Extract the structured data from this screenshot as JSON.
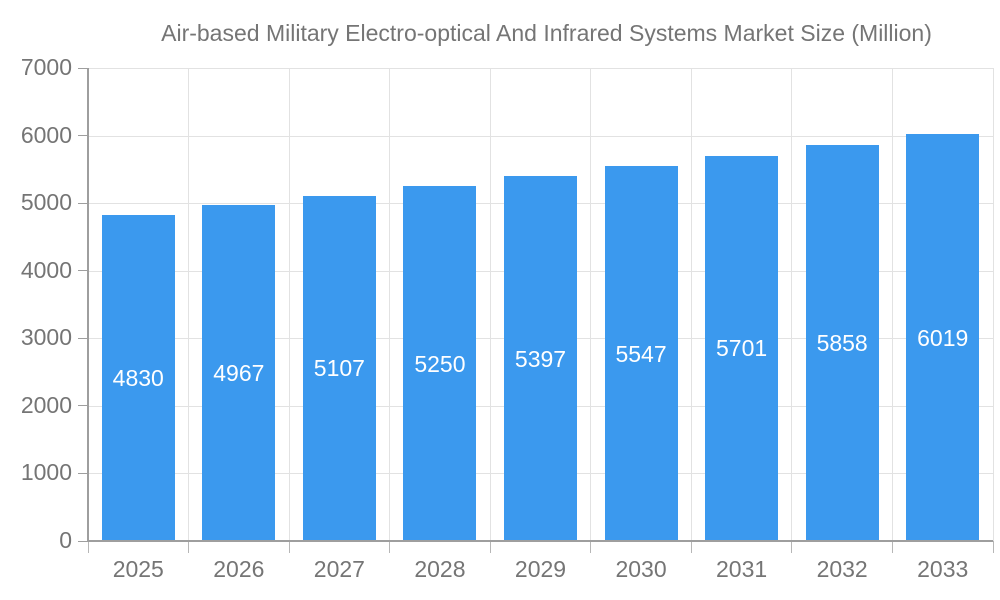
{
  "legend": {
    "label": "Air-based Military Electro-optical And Infrared Systems Market Size (Million)"
  },
  "chart_data": {
    "type": "bar",
    "title": "Air-based Military Electro-optical And Infrared Systems Market Size (Million)",
    "categories": [
      "2025",
      "2026",
      "2027",
      "2028",
      "2029",
      "2030",
      "2031",
      "2032",
      "2033"
    ],
    "values": [
      4830,
      4967,
      5107,
      5250,
      5397,
      5547,
      5701,
      5858,
      6019
    ],
    "xlabel": "",
    "ylabel": "",
    "ylim": [
      0,
      7000
    ],
    "ytick_step": 1000,
    "ytick_labels": [
      "0",
      "1000",
      "2000",
      "3000",
      "4000",
      "5000",
      "6000",
      "7000"
    ],
    "grid": true,
    "legend_position": "top-center",
    "value_labels": "inside-middle"
  },
  "colors": {
    "bar": "#3b99ee",
    "legend_swatch": "#3b99ee",
    "axis_text": "#757575",
    "axis_line": "#9e9e9e",
    "gridline": "#e2e2e2",
    "value_label_text": "#ffffff",
    "background": "#ffffff"
  }
}
